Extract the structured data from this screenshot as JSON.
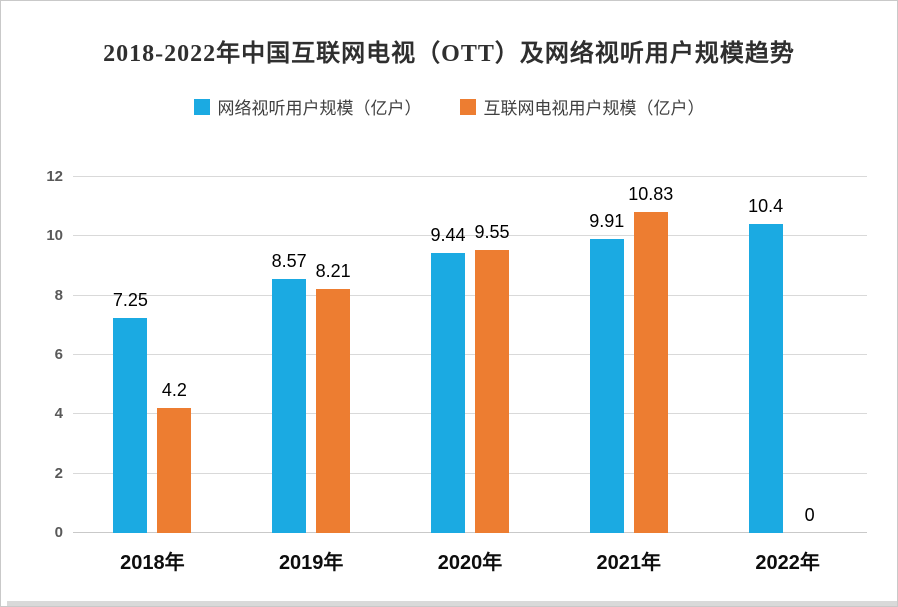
{
  "chart_data": {
    "type": "bar",
    "title": "2018-2022年中国互联网电视（OTT）及网络视听用户规模趋势",
    "categories": [
      "2018年",
      "2019年",
      "2020年",
      "2021年",
      "2022年"
    ],
    "series": [
      {
        "name": "网络视听用户规模（亿户）",
        "color": "#1BAAE2",
        "values": [
          7.25,
          8.57,
          9.44,
          9.91,
          10.4
        ]
      },
      {
        "name": "互联网电视用户规模（亿户）",
        "color": "#ED7D31",
        "values": [
          4.2,
          8.21,
          9.55,
          10.83,
          0
        ]
      }
    ],
    "value_labels": [
      [
        "7.25",
        "8.57",
        "9.44",
        "9.91",
        "10.4"
      ],
      [
        "4.2",
        "8.21",
        "9.55",
        "10.83",
        "0"
      ]
    ],
    "ylim": [
      0,
      12
    ],
    "yticks": [
      0,
      2,
      4,
      6,
      8,
      10,
      12
    ],
    "grid": true,
    "legend_position": "top",
    "xlabel": "",
    "ylabel": "",
    "colors": {
      "gridline": "#D9D9D9",
      "axis_tick_label": "#595959",
      "value_label": "#000000",
      "title": "#2F2F2F",
      "background": "#FFFFFF"
    }
  }
}
